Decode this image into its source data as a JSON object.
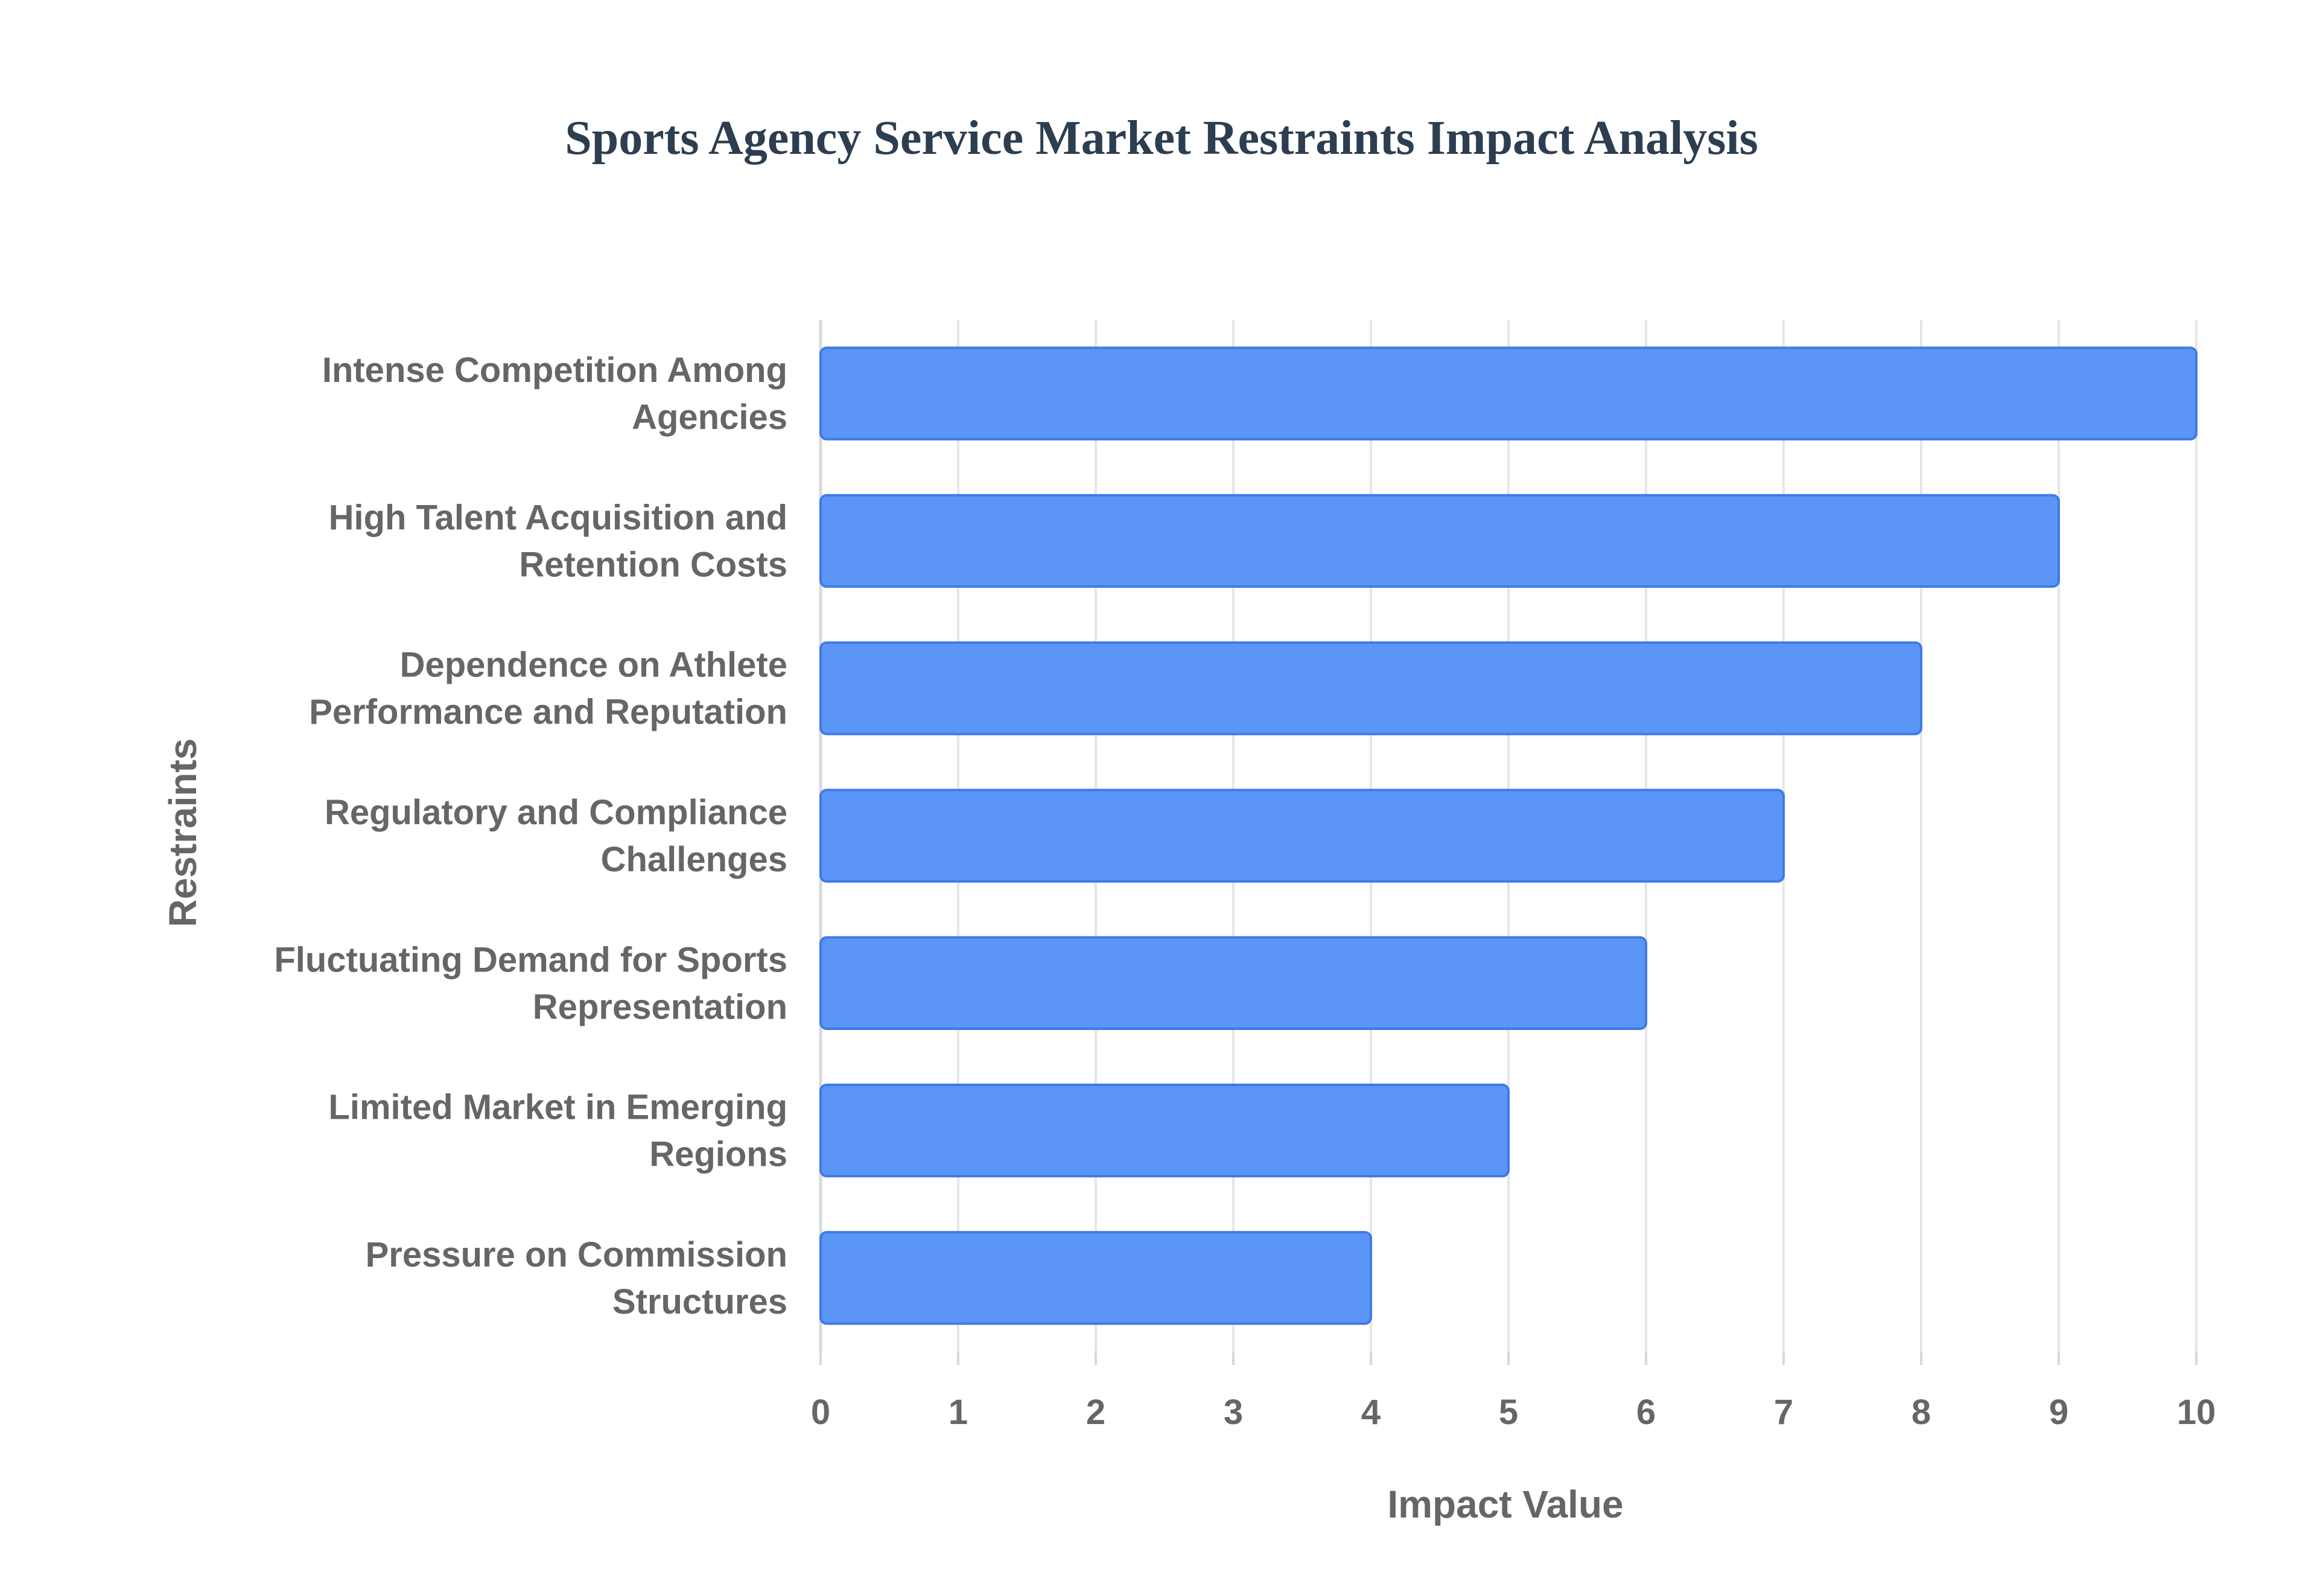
{
  "chart_data": {
    "type": "bar",
    "orientation": "horizontal",
    "title": "Sports Agency Service Market Restraints Impact Analysis",
    "xlabel": "Impact Value",
    "ylabel": "Restraints",
    "xlim": [
      0,
      10
    ],
    "x_ticks": [
      "0",
      "1",
      "2",
      "3",
      "4",
      "5",
      "6",
      "7",
      "8",
      "9",
      "10"
    ],
    "grid": true,
    "legend": "none",
    "categories": [
      [
        "Intense Competition Among",
        "Agencies"
      ],
      [
        "High Talent Acquisition and",
        "Retention Costs"
      ],
      [
        "Dependence on Athlete",
        "Performance and Reputation"
      ],
      [
        "Regulatory and Compliance",
        "Challenges"
      ],
      [
        "Fluctuating Demand for Sports",
        "Representation"
      ],
      [
        "Limited Market in Emerging",
        "Regions"
      ],
      [
        "Pressure on Commission",
        "Structures"
      ]
    ],
    "values": [
      10,
      9,
      8,
      7,
      6,
      5,
      4
    ],
    "colors": {
      "bar_fill": "#5b95f5",
      "bar_stroke": "#3f7ae8",
      "grid": "#e6e6e6",
      "axis": "#d9d9d9",
      "title": "#2c3e50",
      "text": "#666666"
    }
  }
}
